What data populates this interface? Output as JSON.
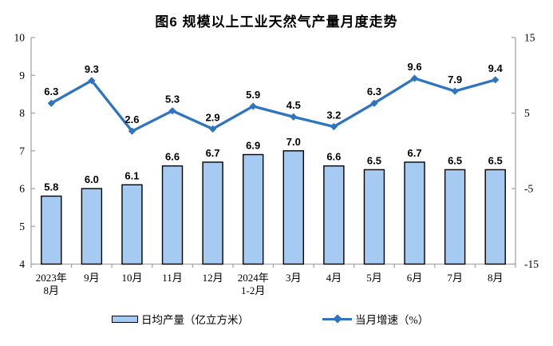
{
  "title": "图6  规模以上工业天然气产量月度走势",
  "chart_data": {
    "type": "bar",
    "subtype": "bar-line-combo",
    "title": "图6  规模以上工业天然气产量月度走势",
    "categories": [
      "2023年\n8月",
      "9月",
      "10月",
      "11月",
      "12月",
      "2024年\n1-2月",
      "3月",
      "4月",
      "5月",
      "6月",
      "7月",
      "8月"
    ],
    "series": [
      {
        "name": "日均产量（亿立方米）",
        "type": "bar",
        "axis": "left",
        "values": [
          5.8,
          6.0,
          6.1,
          6.6,
          6.7,
          6.9,
          7.0,
          6.6,
          6.5,
          6.7,
          6.5,
          6.5
        ],
        "labels": [
          "5.8",
          "6.0",
          "6.1",
          "6.6",
          "6.7",
          "6.9",
          "7.0",
          "6.6",
          "6.5",
          "6.7",
          "6.5",
          "6.5"
        ],
        "fill": "#A5CBF2",
        "stroke": "#000000"
      },
      {
        "name": "当月增速（%）",
        "type": "line",
        "axis": "right",
        "values": [
          6.3,
          9.3,
          2.6,
          5.3,
          2.9,
          5.9,
          4.5,
          3.2,
          6.3,
          9.6,
          7.9,
          9.4
        ],
        "labels": [
          "6.3",
          "9.3",
          "2.6",
          "5.3",
          "2.9",
          "5.9",
          "4.5",
          "3.2",
          "6.3",
          "9.6",
          "7.9",
          "9.4"
        ],
        "color": "#2E74C0",
        "marker": "diamond"
      }
    ],
    "left_axis": {
      "min": 4,
      "max": 10,
      "ticks": [
        4,
        5,
        6,
        7,
        8,
        9,
        10
      ]
    },
    "right_axis": {
      "min": -15,
      "max": 15,
      "ticks": [
        15,
        5,
        -5,
        -15
      ]
    },
    "axis_color": "#A6A6A6",
    "grid": "off",
    "legend_position": "bottom",
    "legend": [
      {
        "label": "日均产量（亿立方米）",
        "swatch": "bar"
      },
      {
        "label": "当月增速（%）",
        "swatch": "line"
      }
    ]
  }
}
